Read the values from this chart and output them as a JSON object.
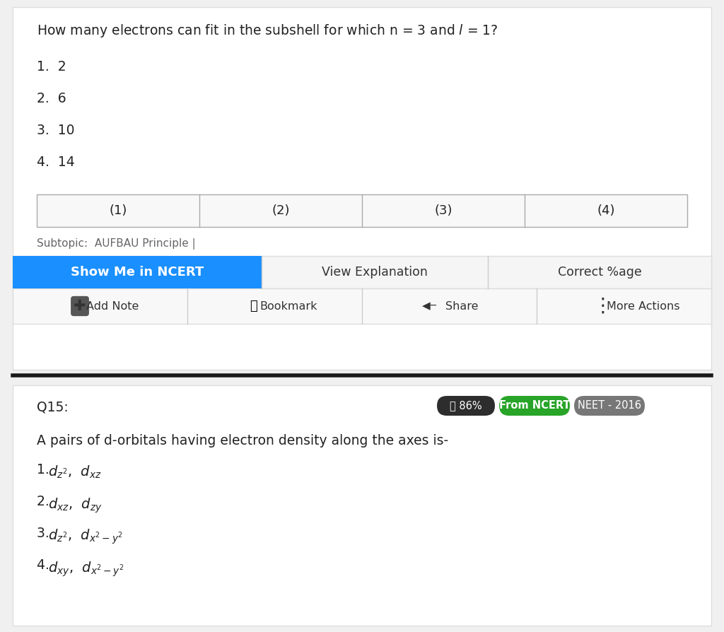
{
  "bg_color": "#f0f0f0",
  "card_color": "#ffffff",
  "question1": "How many electrons can fit in the subshell for which n = 3 and $\\mathit{l}$ = 1?",
  "options1": [
    "1.  2",
    "2.  6",
    "3.  10",
    "4.  14"
  ],
  "table_cells": [
    "(1)",
    "(2)",
    "(3)",
    "(4)"
  ],
  "subtopic_label": "Subtopic:  AUFBAU Principle |",
  "btn_ncert_text": "Show Me in NCERT",
  "btn_ncert_bg": "#1a8fff",
  "btn_ncert_fg": "#ffffff",
  "btn_explanation": "View Explanation",
  "btn_correct": "Correct %age",
  "action_items": [
    "Add Note",
    "Bookmark",
    "Share",
    "More Actions"
  ],
  "separator_color": "#1a1a1a",
  "q15_label": "Q15:",
  "like_pct": "86%",
  "like_bg": "#2d2d2d",
  "from_ncert_bg": "#28a428",
  "neet_bg": "#777777",
  "from_ncert_text": "From NCERT",
  "neet_text": "NEET - 2016",
  "question2": "A pairs of d-orbitals having electron density along the axes is-",
  "options2": [
    [
      "1. ",
      "$d_{z^2}$",
      ",  ",
      "$d_{xz}$"
    ],
    [
      "2. ",
      "$d_{xz}$",
      ",  ",
      "$d_{zy}$"
    ],
    [
      "3. ",
      "$d_{z^2}$",
      ",  ",
      "$d_{x^2-y^2}$"
    ],
    [
      "4. ",
      "$d_{xy}$",
      ",  ",
      "$d_{x^2-y^2}$"
    ]
  ],
  "text_color": "#222222",
  "border_color": "#cccccc",
  "table_bg": "#f8f8f8"
}
